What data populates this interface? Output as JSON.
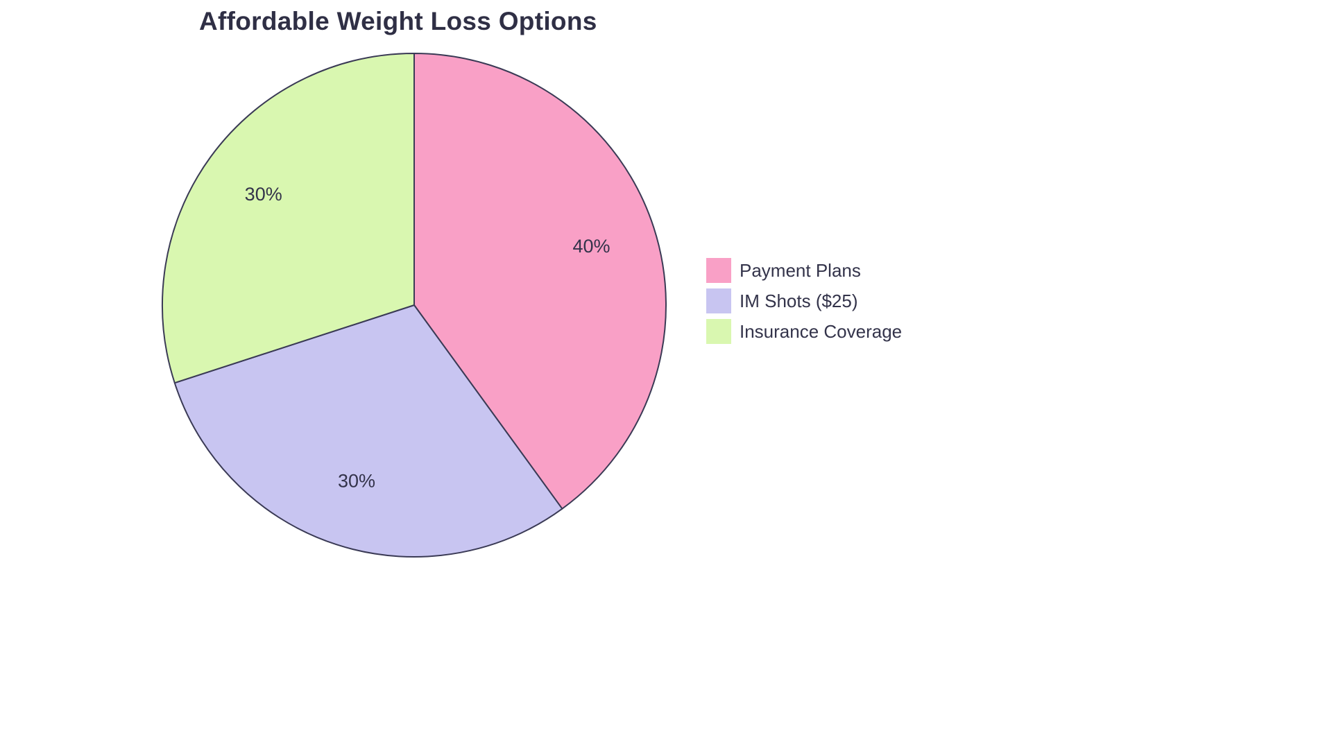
{
  "chart_data": {
    "type": "pie",
    "title": "Affordable Weight Loss Options",
    "labels": [
      "Payment Plans",
      "IM Shots ($25)",
      "Insurance Coverage"
    ],
    "values": [
      40,
      30,
      30
    ],
    "percent_labels": [
      "40%",
      "30%",
      "30%"
    ],
    "colors": [
      "#F9A0C6",
      "#C8C5F1",
      "#D9F7B0"
    ],
    "stroke_color": "#3A3A55",
    "start_angle_deg": -90,
    "direction": "clockwise",
    "legend_position": "right",
    "grid": false
  }
}
